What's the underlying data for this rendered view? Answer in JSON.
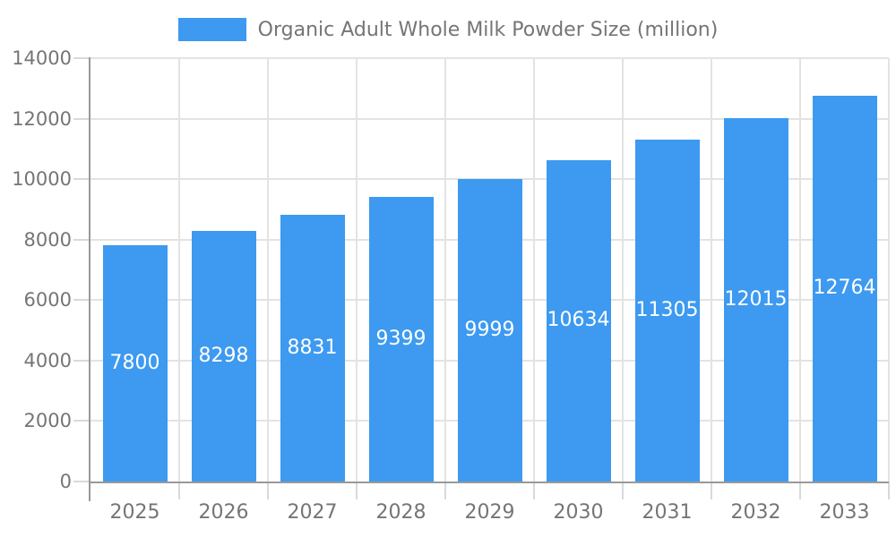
{
  "legend": {
    "label": "Organic Adult Whole Milk Powder Size (million)"
  },
  "chart_data": {
    "type": "bar",
    "title": "Organic Adult Whole Milk Powder Size (million)",
    "legend_position": "top-center",
    "categories": [
      "2025",
      "2026",
      "2027",
      "2028",
      "2029",
      "2030",
      "2031",
      "2032",
      "2033"
    ],
    "series": [
      {
        "name": "Organic Adult Whole Milk Powder Size (million)",
        "values": [
          7800,
          8298,
          8831,
          9399,
          9999,
          10634,
          11305,
          12015,
          12764
        ]
      }
    ],
    "xlabel": "",
    "ylabel": "",
    "ylim": [
      0,
      14000
    ],
    "yticks": [
      0,
      2000,
      4000,
      6000,
      8000,
      10000,
      12000,
      14000
    ],
    "grid": true,
    "value_label_position": "inside-center",
    "colors": {
      "bar": "#3D9AF0",
      "value_label": "#FFFFFF",
      "axis_text": "#757575",
      "axis_line": "#999999",
      "gridline": "#E3E3E3",
      "tick": "#D9D9D9",
      "background": "#FFFFFF"
    }
  }
}
